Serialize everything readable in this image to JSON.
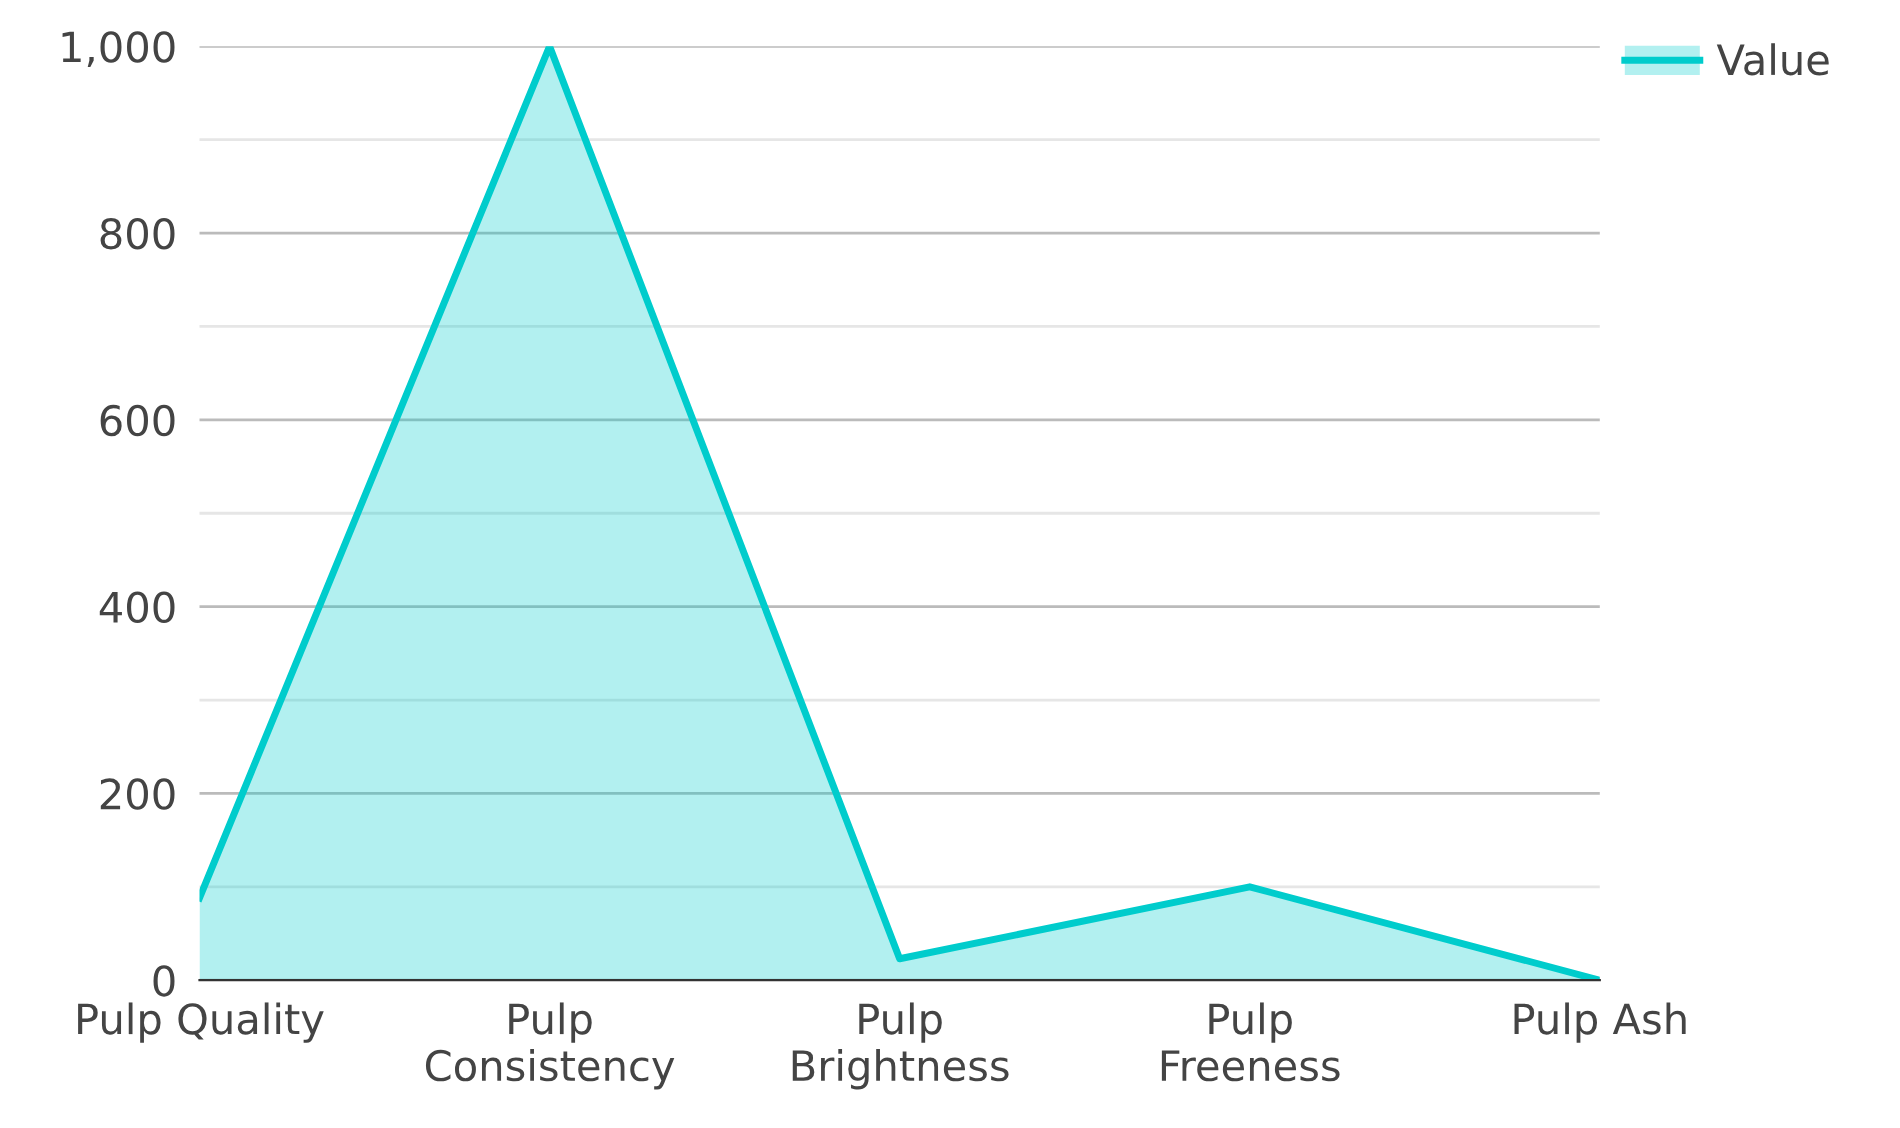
{
  "chart_data": {
    "type": "area",
    "categories": [
      "Pulp Quality",
      "Pulp\nConsistency",
      "Pulp\nBrightness",
      "Pulp\nFreeness",
      "Pulp Ash"
    ],
    "series": [
      {
        "name": "Value",
        "color": "#00cccc",
        "values": [
          88,
          1000,
          23,
          100,
          0
        ]
      }
    ],
    "ylim": [
      0,
      1000
    ],
    "yticks": [
      0,
      {
        "value": 100,
        "label": null
      },
      200,
      {
        "value": 300,
        "label": null
      },
      400,
      {
        "value": 500,
        "label": null
      },
      600,
      {
        "value": 700,
        "label": null
      },
      800,
      {
        "value": 900,
        "label": null
      },
      {
        "value": 1000,
        "label": "1,000"
      }
    ],
    "grid": "y",
    "legend": "top right",
    "marker": "none",
    "line_style": "solid"
  }
}
